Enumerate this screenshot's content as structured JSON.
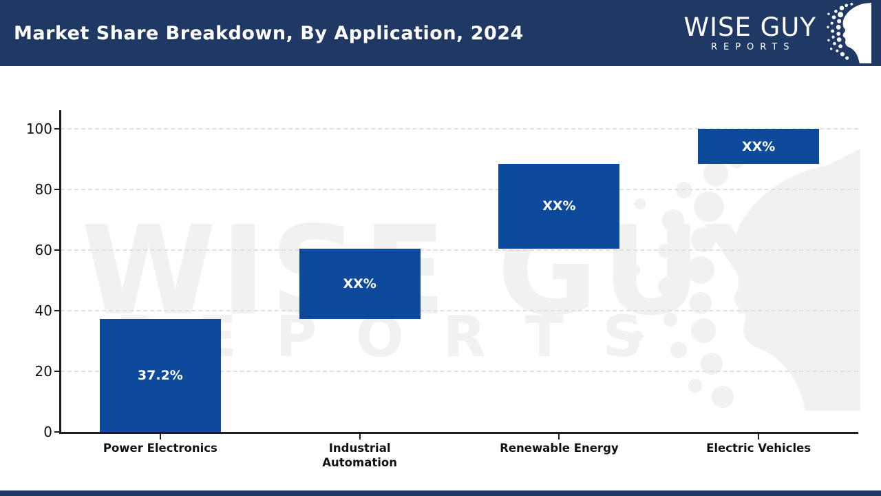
{
  "header": {
    "title": "Market Share Breakdown, By Application, 2024",
    "logo": {
      "line1": "WISE GUY",
      "line2": "REPORTS"
    }
  },
  "watermark": {
    "line1": "WISE GUY",
    "line2": "R E P O R T S"
  },
  "chart_data": {
    "type": "bar",
    "subtype": "waterfall",
    "title": "Market Share Breakdown, By Application, 2024",
    "categories": [
      "Power Electronics",
      "Industrial Automation",
      "Renewable Energy",
      "Electric Vehicles"
    ],
    "tick_labels": [
      "Power Electronics",
      "Industrial\nAutomation",
      "Renewable Energy",
      "Electric Vehicles"
    ],
    "segments": [
      {
        "category": "Power Electronics",
        "start": 0,
        "end": 37.2,
        "label": "37.2%"
      },
      {
        "category": "Industrial Automation",
        "start": 37.2,
        "end": 60.5,
        "label": "XX%"
      },
      {
        "category": "Renewable Energy",
        "start": 60.5,
        "end": 88.4,
        "label": "XX%"
      },
      {
        "category": "Electric Vehicles",
        "start": 88.4,
        "end": 100,
        "label": "XX%"
      }
    ],
    "xlabel": "",
    "ylabel": "",
    "ylim": [
      0,
      100
    ],
    "yticks": [
      0,
      20,
      40,
      60,
      80,
      100
    ],
    "grid": "horizontal-dashed",
    "legend": "none",
    "colors": {
      "bar": "#0d4a9c",
      "bar_label": "#ffffff",
      "header_bg": "#203864",
      "footer_bg": "#203864",
      "axis": "#1c1c1c",
      "gridline": "#e0e0e0",
      "tick_text": "#111111",
      "watermark": "#f1f1f1"
    }
  }
}
